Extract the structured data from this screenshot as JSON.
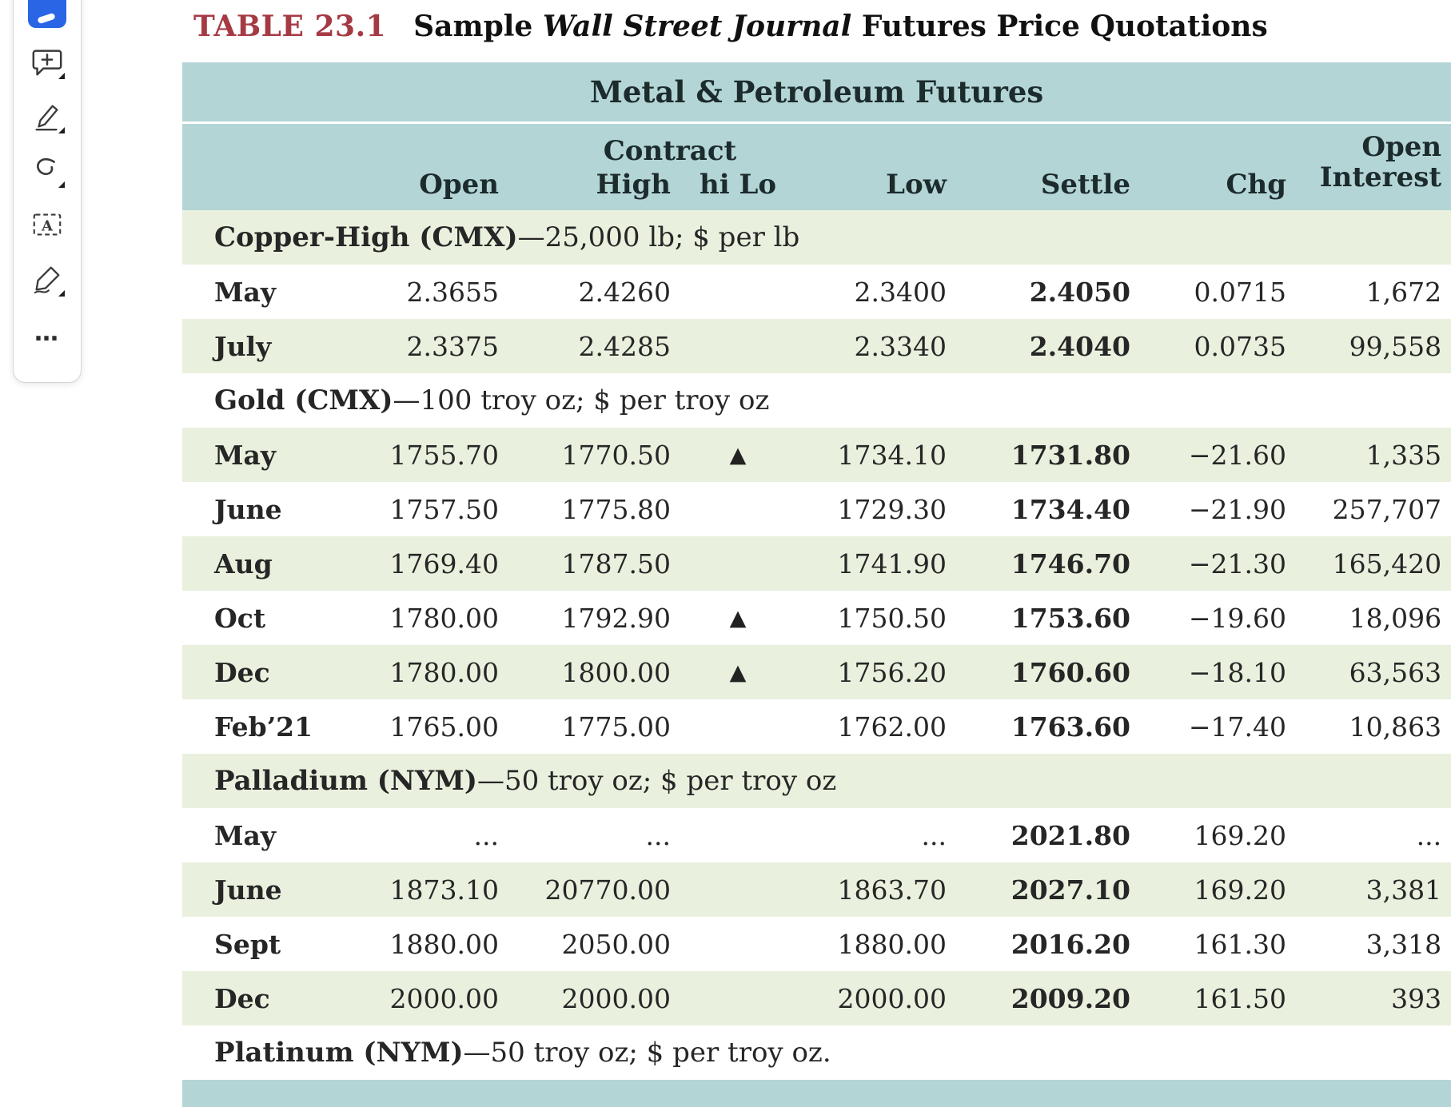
{
  "colors": {
    "teal": "#b4d5d6",
    "stripe_green": "#e9f1de",
    "title_red": "#a63a44",
    "ink": "#262626",
    "badge_blue": "#2a65e5"
  },
  "title": {
    "tag": "TABLE 23.1",
    "pre": "Sample ",
    "italic": "Wall Street Journal",
    "post": " Futures Price Quotations"
  },
  "table": {
    "banner": "Metal & Petroleum Futures",
    "contract": "Contract",
    "col_open": "Open",
    "col_high": "High",
    "col_hilo": "hi Lo",
    "col_low": "Low",
    "col_settle": "Settle",
    "col_chg": "Chg",
    "col_open_interest_line1": "Open",
    "col_open_interest_line2": "Interest",
    "sections": [
      {
        "name": "Copper-High (CMX)",
        "spec": "—25,000 lb; $ per lb",
        "rows": [
          {
            "month": "May",
            "open": "2.3655",
            "high": "2.4260",
            "hilo": "",
            "low": "2.3400",
            "settle": "2.4050",
            "chg": "0.0715",
            "oi": "1,672"
          },
          {
            "month": "July",
            "open": "2.3375",
            "high": "2.4285",
            "hilo": "",
            "low": "2.3340",
            "settle": "2.4040",
            "chg": "0.0735",
            "oi": "99,558"
          }
        ]
      },
      {
        "name": "Gold (CMX)",
        "spec": "—100 troy oz; $ per troy oz",
        "rows": [
          {
            "month": "May",
            "open": "1755.70",
            "high": "1770.50",
            "hilo": "▲",
            "low": "1734.10",
            "settle": "1731.80",
            "chg": "−21.60",
            "oi": "1,335"
          },
          {
            "month": "June",
            "open": "1757.50",
            "high": "1775.80",
            "hilo": "",
            "low": "1729.30",
            "settle": "1734.40",
            "chg": "−21.90",
            "oi": "257,707"
          },
          {
            "month": "Aug",
            "open": "1769.40",
            "high": "1787.50",
            "hilo": "",
            "low": "1741.90",
            "settle": "1746.70",
            "chg": "−21.30",
            "oi": "165,420"
          },
          {
            "month": "Oct",
            "open": "1780.00",
            "high": "1792.90",
            "hilo": "▲",
            "low": "1750.50",
            "settle": "1753.60",
            "chg": "−19.60",
            "oi": "18,096"
          },
          {
            "month": "Dec",
            "open": "1780.00",
            "high": "1800.00",
            "hilo": "▲",
            "low": "1756.20",
            "settle": "1760.60",
            "chg": "−18.10",
            "oi": "63,563"
          },
          {
            "month": "Feb’21",
            "open": "1765.00",
            "high": "1775.00",
            "hilo": "",
            "low": "1762.00",
            "settle": "1763.60",
            "chg": "−17.40",
            "oi": "10,863"
          }
        ]
      },
      {
        "name": "Palladium (NYM)",
        "spec": "—50 troy oz; $ per troy oz",
        "rows": [
          {
            "month": "May",
            "open": "...",
            "high": "...",
            "hilo": "",
            "low": "...",
            "settle": "2021.80",
            "chg": "169.20",
            "oi": "..."
          },
          {
            "month": "June",
            "open": "1873.10",
            "high": "20770.00",
            "hilo": "",
            "low": "1863.70",
            "settle": "2027.10",
            "chg": "169.20",
            "oi": "3,381"
          },
          {
            "month": "Sept",
            "open": "1880.00",
            "high": "2050.00",
            "hilo": "",
            "low": "1880.00",
            "settle": "2016.20",
            "chg": "161.30",
            "oi": "3,318"
          },
          {
            "month": "Dec",
            "open": "2000.00",
            "high": "2000.00",
            "hilo": "",
            "low": "2000.00",
            "settle": "2009.20",
            "chg": "161.50",
            "oi": "393"
          }
        ]
      },
      {
        "name": "Platinum (NYM)",
        "spec": "—50 troy oz; $ per troy oz.",
        "rows": []
      }
    ]
  },
  "toolbar": {
    "icons": [
      "selected-tool-badge",
      "add-comment-icon",
      "highlight-pen-icon",
      "draw-curve-icon",
      "text-box-icon",
      "fill-and-sign-icon",
      "more-tools-icon"
    ],
    "more_label": "…"
  }
}
